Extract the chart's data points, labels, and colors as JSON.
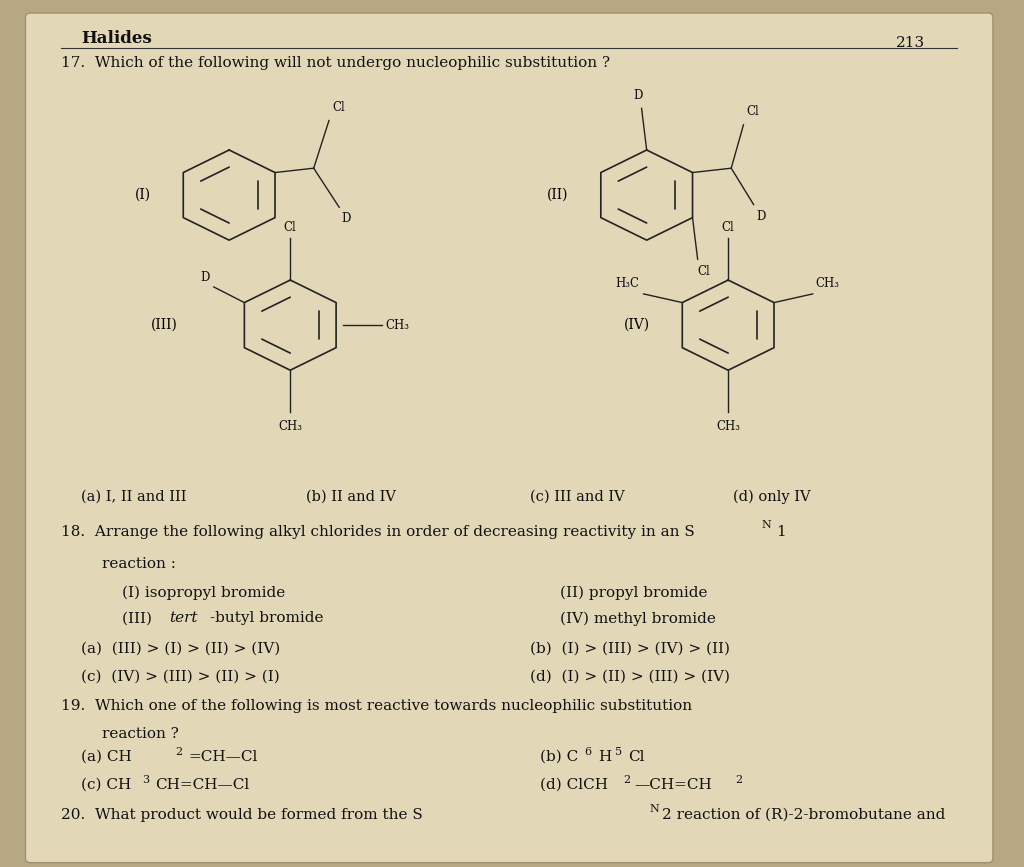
{
  "background_color": "#b5a882",
  "page_color": "#e2d8b8",
  "title_section": "Halides",
  "page_number": "213",
  "q17_text": "17.  Which of the following will not undergo nucleophilic substitution ?",
  "q17_options": [
    "(a) I, II and III",
    "(b) II and IV",
    "(c) III and IV",
    "(d) only IV"
  ],
  "q18_text": "18.  Arrange the following alkyl chlorides in order of decreasing reactivity in an S",
  "q18_sub": "N",
  "q18_text2": "1",
  "q18_line2": "reaction :",
  "q18_compounds_left": [
    "(I) isopropyl bromide",
    "(III) tert-butyl bromide"
  ],
  "q18_compounds_right": [
    "(II) propyl bromide",
    "(IV) methyl bromide"
  ],
  "q18_answers_left": [
    "(a)  (III) > (I) > (II) > (IV)",
    "(c)  (IV) > (III) > (II) > (I)"
  ],
  "q18_answers_right": [
    "(b)  (I) > (III) > (IV) > (II)",
    "(d)  (I) > (II) > (III) > (IV)"
  ],
  "q19_text": "19.  Which one of the following is most reactive towards nucleophilic substitution",
  "q19_line2": "reaction ?",
  "q20_text": "20.  What product would be formed from the S",
  "q20_sub": "N",
  "q20_text2": "2 reaction of (R)-2-bromobutane and"
}
